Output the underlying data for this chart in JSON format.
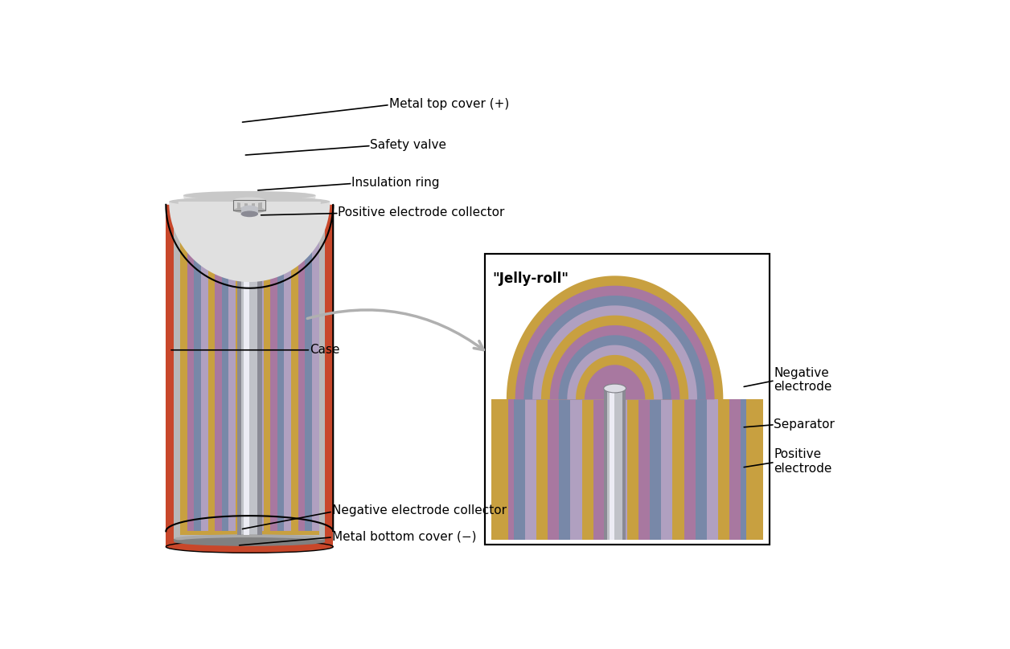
{
  "background_color": "#ffffff",
  "colors": {
    "outer_case_red": "#c8472a",
    "outer_case_dark": "#a03520",
    "gray_shell": "#b8b8b8",
    "gray_shell_light": "#d0d0d0",
    "dark_sep": "#5a5a5a",
    "pink_ins": "#d9978a",
    "dome_gray": "#c8c8c8",
    "dome_light": "#e0e0e0",
    "knob_gray": "#b0b0b0",
    "knob_light": "#d8d8d8",
    "knob_dark": "#888888",
    "silver_mid": "#c0c2c8",
    "silver_light": "#dcdce4",
    "silver_dark": "#8a8a94",
    "silver_highlight": "#ececf4",
    "bottom_dark": "#808080",
    "bottom_light": "#a8a8a8",
    "stripe_yellow": "#c8a040",
    "stripe_purple": "#a878a0",
    "stripe_blue": "#7888a8",
    "stripe_lavender": "#b0a0c0",
    "jroll_yellow": "#c8a040",
    "jroll_purple": "#a878a0",
    "jroll_blue": "#7888a8",
    "jroll_lavender": "#b0a0c0",
    "arrow_gray": "#b0b0b0"
  },
  "labels": {
    "metal_top_cover": "Metal top cover (+)",
    "safety_valve": "Safety valve",
    "insulation_ring": "Insulation ring",
    "positive_electrode_collector": "Positive electrode collector",
    "case": "Case",
    "negative_electrode_collector": "Negative electrode collector",
    "metal_bottom_cover": "Metal bottom cover (−)",
    "jelly_roll": "\"Jelly-roll\"",
    "negative_electrode": "Negative\nelectrode",
    "separator": "Separator",
    "positive_electrode": "Positive\nelectrode"
  },
  "font_size": 11
}
